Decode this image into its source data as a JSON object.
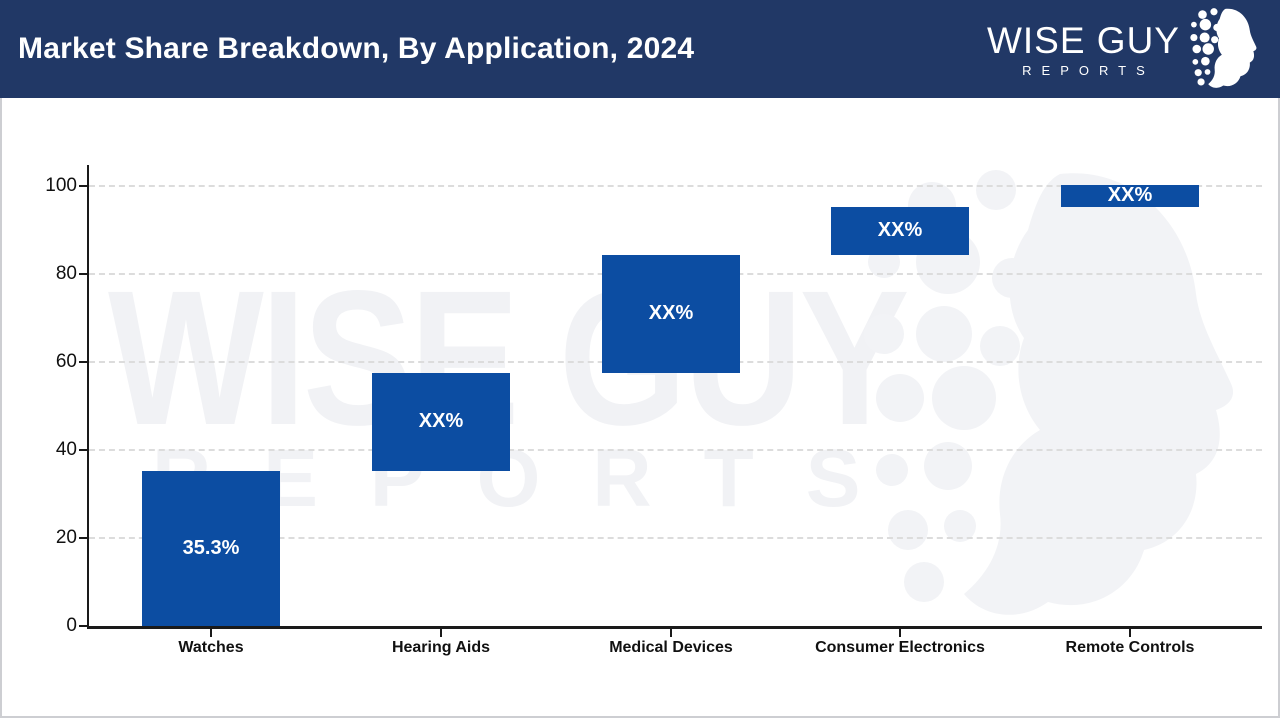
{
  "header": {
    "title": "Market Share Breakdown, By Application, 2024",
    "logo": {
      "line1": "WISE GUY",
      "line2": "REPORTS"
    }
  },
  "watermark": {
    "line1": "WISE GUY",
    "line2": "REPORTS"
  },
  "colors": {
    "header_background": "#213866",
    "bar_fill": "#0c4da2",
    "bar_label": "#ffffff",
    "gridline": "#dcdcdc",
    "axis": "#1a1a1a",
    "watermark": "#f1f2f5"
  },
  "chart_data": {
    "type": "bar",
    "subtype": "waterfall-floating-bars",
    "title": "Market Share Breakdown, By Application, 2024",
    "categories": [
      "Watches",
      "Hearing Aids",
      "Medical Devices",
      "Consumer Electronics",
      "Remote Controls"
    ],
    "segments": [
      {
        "category": "Watches",
        "start": 0,
        "end": 35.3,
        "label": "35.3%"
      },
      {
        "category": "Hearing Aids",
        "start": 35.3,
        "end": 57.6,
        "label": "XX%"
      },
      {
        "category": "Medical Devices",
        "start": 57.6,
        "end": 84.3,
        "label": "XX%"
      },
      {
        "category": "Consumer Electronics",
        "start": 84.3,
        "end": 95.3,
        "label": "XX%"
      },
      {
        "category": "Remote Controls",
        "start": 95.3,
        "end": 100.3,
        "label": "XX%"
      }
    ],
    "xlabel": "",
    "ylabel": "",
    "ylim": [
      0,
      105
    ],
    "yticks": [
      0,
      20,
      40,
      60,
      80,
      100
    ],
    "grid": "dashed-horizontal",
    "legend": "none"
  }
}
